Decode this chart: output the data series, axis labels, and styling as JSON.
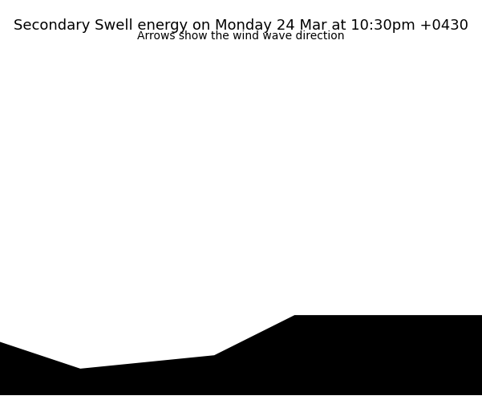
{
  "title": "Secondary Swell energy on Monday 24 Mar at 10:30pm +0430",
  "subtitle": "Arrows show the wind wave direction",
  "title_fontsize": 13,
  "subtitle_fontsize": 10,
  "map_extent": [
    44.0,
    80.0,
    22.0,
    47.0
  ],
  "figsize": [
    6.01,
    5.1
  ],
  "dpi": 100,
  "background_color": "#ffffff",
  "title_color": "#000000",
  "border_color": "#000000",
  "ocean_color": "#000000",
  "land_color_base": "#aaaaaa"
}
